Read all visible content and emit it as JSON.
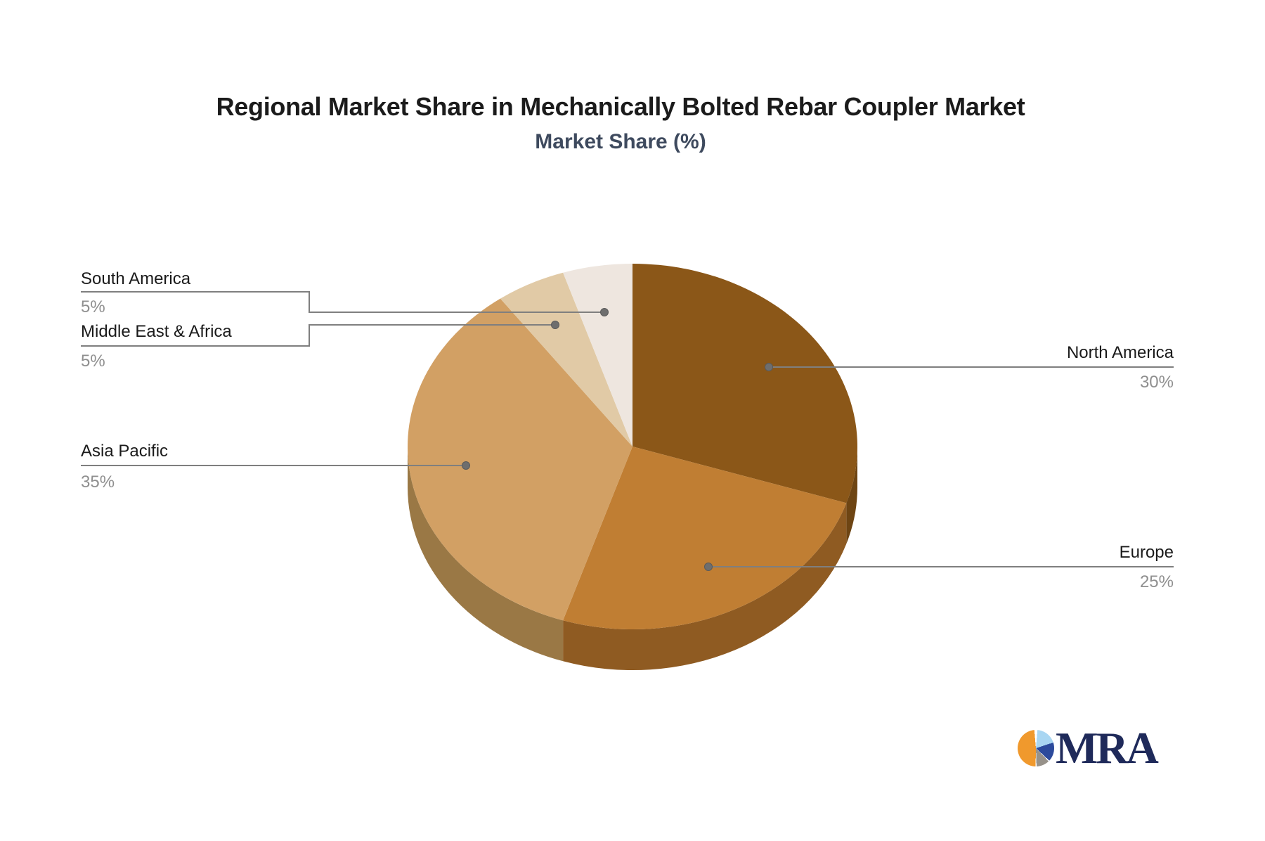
{
  "header": {
    "title": "Regional Market Share in Mechanically Bolted Rebar Coupler Market",
    "subtitle": "Market Share (%)"
  },
  "chart_data": {
    "type": "pie",
    "title": "Regional Market Share in Mechanically Bolted Rebar Coupler Market",
    "subtitle": "Market Share (%)",
    "unit": "%",
    "style": "3d-pie",
    "start_angle_deg": 0,
    "direction": "clockwise",
    "legend": "none (callout labels with leader lines)",
    "slices": [
      {
        "label": "North America",
        "value": 30,
        "color": "#8b5718",
        "side_color": "#6e4513"
      },
      {
        "label": "Europe",
        "value": 25,
        "color": "#c07e33",
        "side_color": "#8f5b22"
      },
      {
        "label": "Asia Pacific",
        "value": 35,
        "color": "#d2a064",
        "side_color": "#9a7845"
      },
      {
        "label": "Middle East & Africa",
        "value": 5,
        "color": "#e1caa6",
        "side_color": "#b6a284"
      },
      {
        "label": "South America",
        "value": 5,
        "color": "#eee6df",
        "side_color": "#c0b8b1"
      }
    ],
    "label_style": {
      "name_color": "#1a1a1a",
      "value_color": "#8f8f8f",
      "leader_line_color": "#7f7f7f"
    }
  },
  "callouts": {
    "north_america": {
      "label": "North America",
      "pct": "30%"
    },
    "europe": {
      "label": "Europe",
      "pct": "25%"
    },
    "asia_pacific": {
      "label": "Asia Pacific",
      "pct": "35%"
    },
    "middle_east_africa": {
      "label": "Middle East & Africa",
      "pct": "5%"
    },
    "south_america": {
      "label": "South America",
      "pct": "5%"
    }
  },
  "logo": {
    "text": "MRA",
    "text_color": "#1f2a5a",
    "icon_colors": {
      "orange": "#f0992d",
      "light_blue": "#a9d6f2",
      "dark_blue": "#2c4a9c",
      "gray": "#97928a"
    }
  }
}
